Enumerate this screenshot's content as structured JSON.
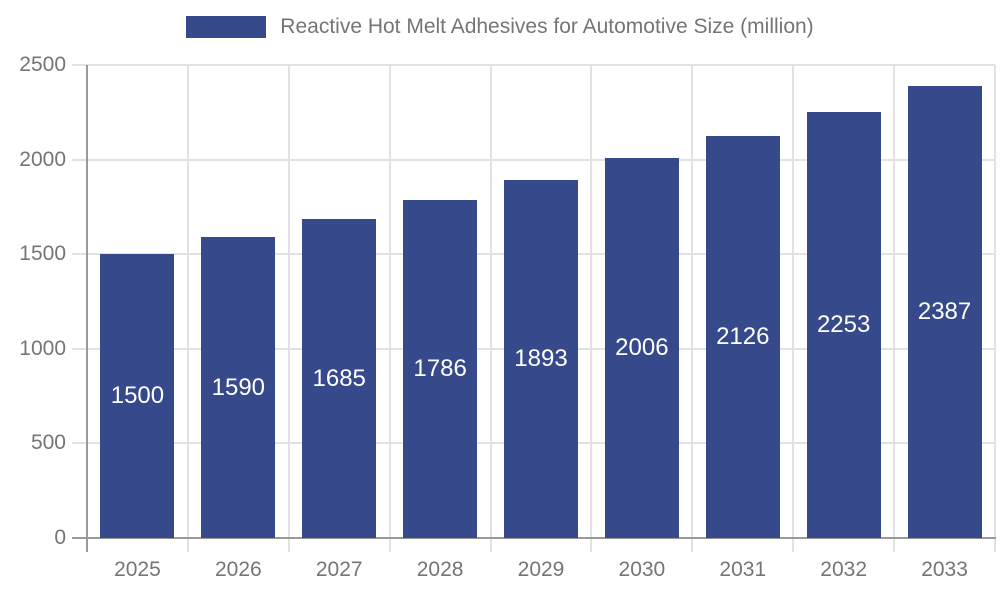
{
  "chart_data": {
    "type": "bar",
    "title": "Reactive Hot Melt Adhesives for Automotive Size (million)",
    "categories": [
      "2025",
      "2026",
      "2027",
      "2028",
      "2029",
      "2030",
      "2031",
      "2032",
      "2033"
    ],
    "values": [
      1500,
      1590,
      1685,
      1786,
      1893,
      2006,
      2126,
      2253,
      2387
    ],
    "xlabel": "",
    "ylabel": "",
    "ylim": [
      0,
      2500
    ],
    "yticks": [
      0,
      500,
      1000,
      1500,
      2000,
      2500
    ],
    "grid": true,
    "legend_position": "top-center",
    "bar_value_labels_visible": true,
    "colors": {
      "bar": "#364a8b",
      "bar_value_label": "#ffffff",
      "axis_line": "#9a9a9a",
      "grid_line": "#e2e2e2",
      "tick_label": "#757575",
      "legend_text": "#757575",
      "background": "#ffffff"
    }
  }
}
